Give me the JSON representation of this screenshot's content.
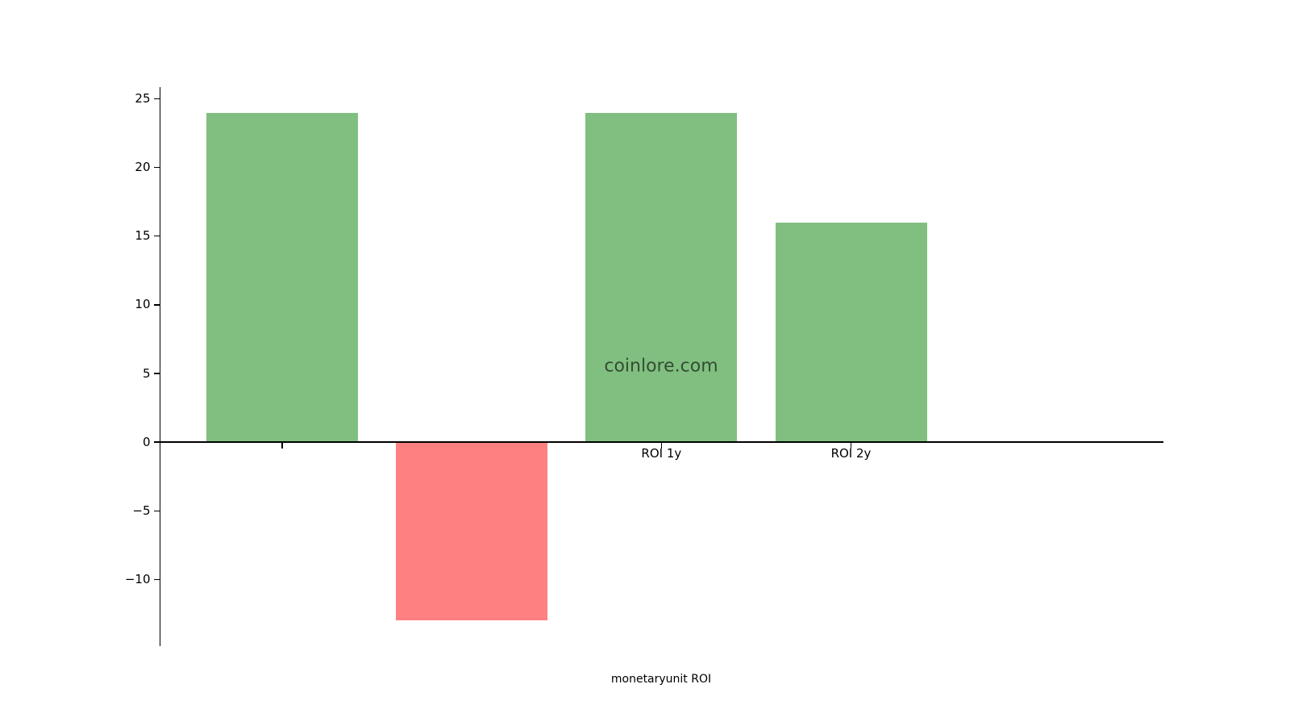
{
  "chart_data": {
    "type": "bar",
    "categories": [
      "",
      "",
      "ROI 1y",
      "ROI 2y"
    ],
    "values": [
      24,
      -13,
      24,
      16
    ],
    "bar_colors": [
      "#80bf80",
      "#ff8080",
      "#80bf80",
      "#80bf80"
    ],
    "title": "",
    "xlabel": "monetaryunit ROI",
    "ylabel": "",
    "ylim": [
      -14.85,
      25.85
    ],
    "yticks": [
      25,
      20,
      15,
      10,
      5,
      0,
      -5,
      -10
    ],
    "grid": false,
    "legend_position": "none",
    "watermark": "coinlore.com",
    "colors": {
      "positive_bar": "#80bf80",
      "negative_bar": "#ff8080",
      "axis": "#000000",
      "watermark_text": "rgba(0,0,0,0.6)"
    }
  }
}
